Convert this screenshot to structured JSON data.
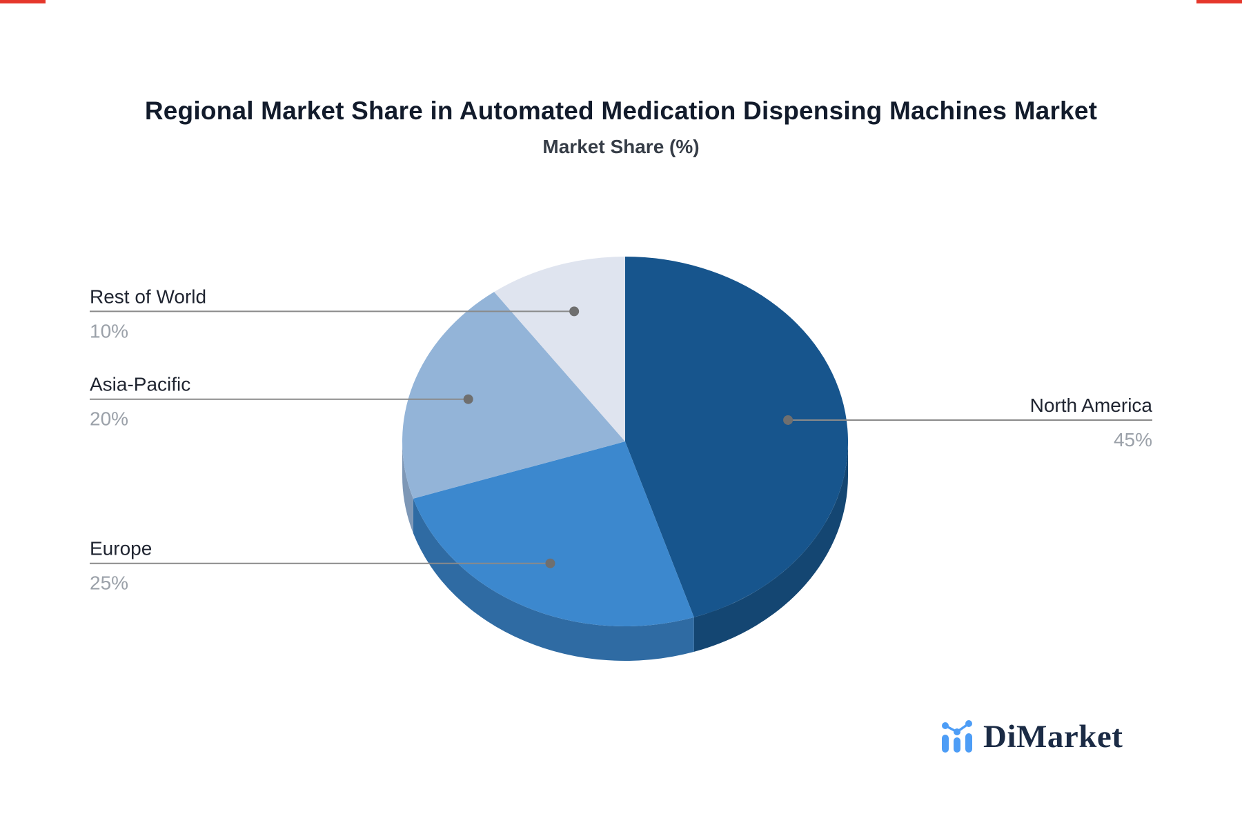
{
  "page": {
    "title": "Regional Market Share in Automated Medication Dispensing Machines Market",
    "subtitle": "Market Share (%)",
    "background_color": "#ffffff",
    "corner_mark_color": "#e5372b"
  },
  "chart_data": {
    "type": "pie",
    "style": "3d",
    "unit": "%",
    "title": "Regional Market Share in Automated Medication Dispensing Machines Market",
    "subtitle": "Market Share (%)",
    "start_angle": "12 o'clock",
    "direction": "clockwise",
    "legend_position": "callout-labels",
    "slices": [
      {
        "label": "North America",
        "value": 45,
        "value_label": "45%",
        "color": "#17558D",
        "side_color": "#144672",
        "callout_side": "right"
      },
      {
        "label": "Europe",
        "value": 25,
        "value_label": "25%",
        "color": "#3C88CE",
        "side_color": "#2F6BA3",
        "callout_side": "left"
      },
      {
        "label": "Asia-Pacific",
        "value": 20,
        "value_label": "20%",
        "color": "#93B4D8",
        "side_color": "#7D97B6",
        "callout_side": "left"
      },
      {
        "label": "Rest of World",
        "value": 10,
        "value_label": "10%",
        "color": "#DFE4EF",
        "side_color": "#B8C0CF",
        "callout_side": "left"
      }
    ],
    "callout": {
      "line_color": "#8a8a8a",
      "dot_color": "#6f6f6f",
      "label_color": "#1f2430",
      "value_color": "#9ba1a9"
    }
  },
  "brand": {
    "name": "DiMarket",
    "icon": "bar-line-chart-icon",
    "text_color": "#1b2b45",
    "icon_color": "#4D9DF6"
  }
}
